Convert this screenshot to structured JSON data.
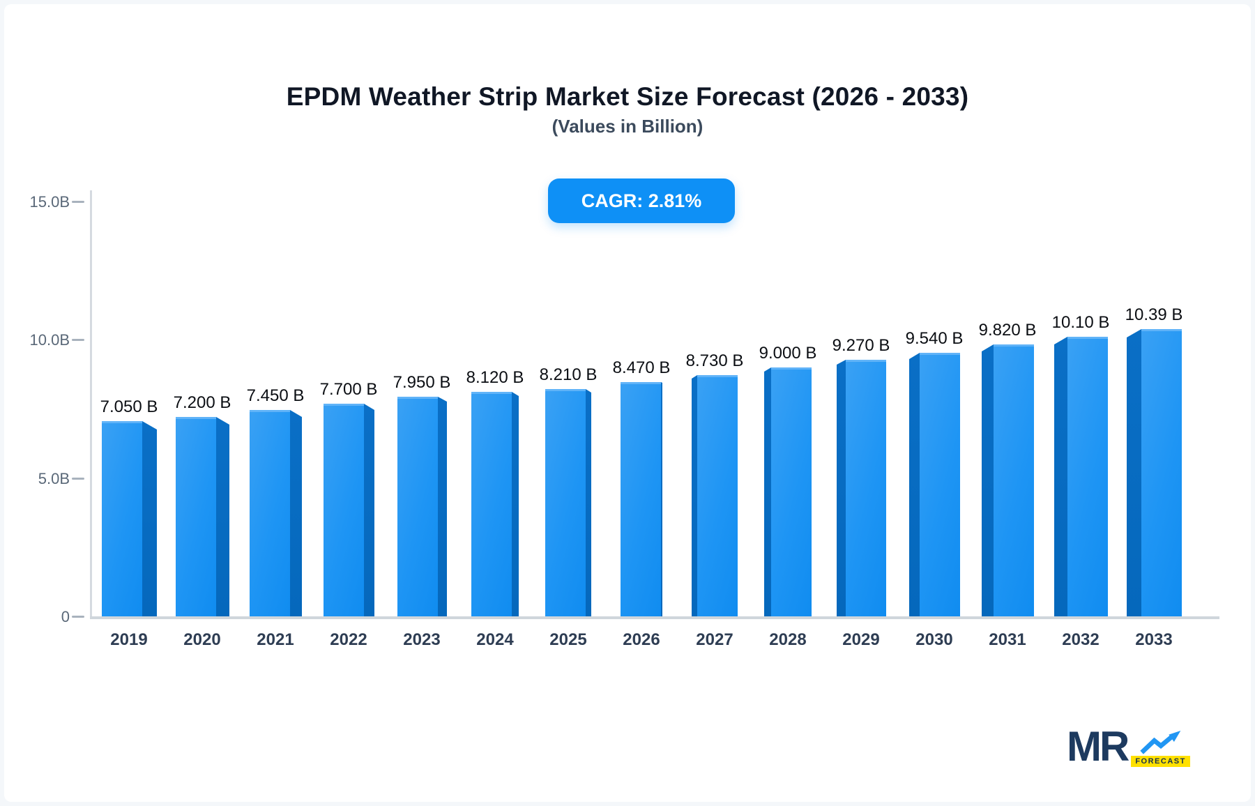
{
  "title": "EPDM Weather Strip Market Size Forecast (2026 - 2033)",
  "subtitle": "(Values in Billion)",
  "cagr_badge": "CAGR: 2.81%",
  "logo": {
    "mr": "MR",
    "forecast": "FORECAST"
  },
  "colors": {
    "bar_face": "#2196F4",
    "bar_side": "#0568BC",
    "accent_badge": "#0E90F6",
    "logo_navy": "#1D3A5F",
    "logo_yellow": "#FFE000",
    "arrow_blue": "#2196F3"
  },
  "chart_data": {
    "type": "bar",
    "title": "EPDM Weather Strip Market Size Forecast (2026 - 2033)",
    "subtitle": "(Values in Billion)",
    "xlabel": "",
    "ylabel": "",
    "ylim": [
      0,
      15
    ],
    "grid": false,
    "legend": "none",
    "categories": [
      "2019",
      "2020",
      "2021",
      "2022",
      "2023",
      "2024",
      "2025",
      "2026",
      "2027",
      "2028",
      "2029",
      "2030",
      "2031",
      "2032",
      "2033"
    ],
    "values": [
      7.05,
      7.2,
      7.45,
      7.7,
      7.95,
      8.12,
      8.21,
      8.47,
      8.73,
      9.0,
      9.27,
      9.54,
      9.82,
      10.1,
      10.39
    ],
    "value_labels": [
      "7.050 B",
      "7.200 B",
      "7.450 B",
      "7.700 B",
      "7.950 B",
      "8.120 B",
      "8.210 B",
      "8.470 B",
      "8.730 B",
      "9.000 B",
      "9.270 B",
      "9.540 B",
      "9.820 B",
      "10.10 B",
      "10.39 B"
    ],
    "y_ticks": [
      {
        "label": "0",
        "value": 0
      },
      {
        "label": "5.0B",
        "value": 5
      },
      {
        "label": "10.0B",
        "value": 10
      },
      {
        "label": "15.0B",
        "value": 15
      }
    ]
  }
}
